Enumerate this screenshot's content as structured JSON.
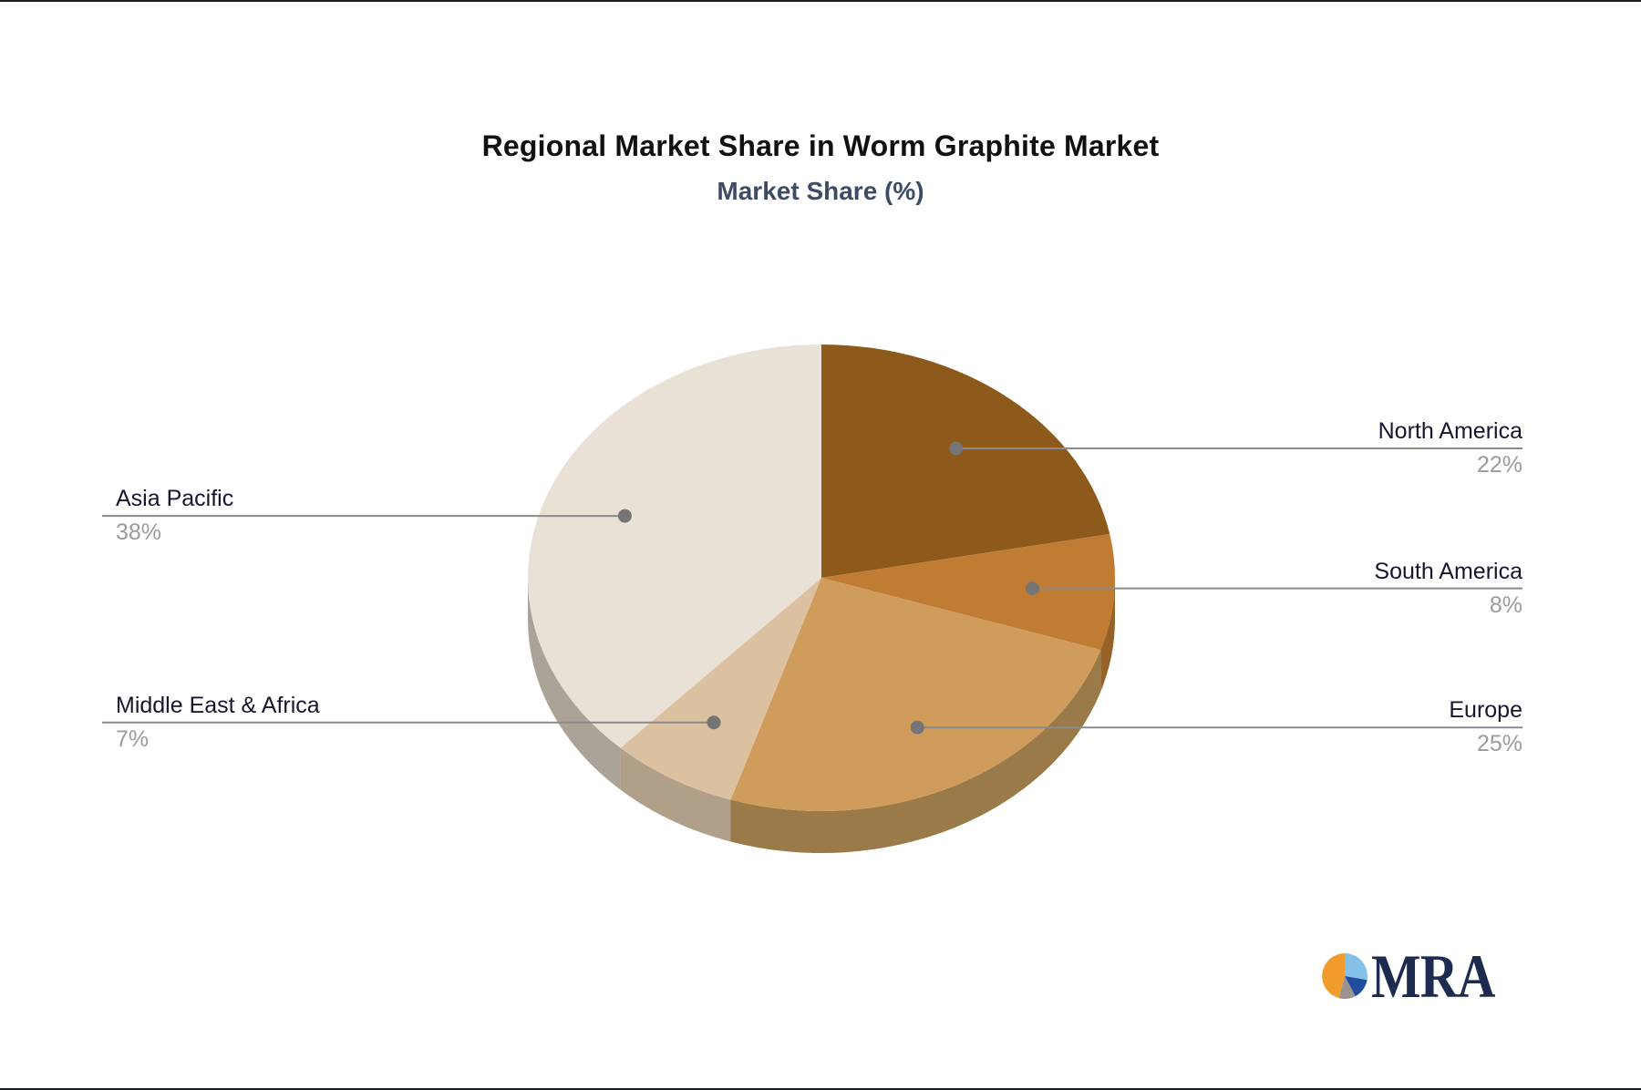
{
  "chart_data": {
    "type": "pie",
    "title": "Regional Market Share in Worm Graphite Market",
    "subtitle": "Market Share (%)",
    "unit": "%",
    "style": "3d",
    "start_angle": "top",
    "direction": "clockwise",
    "slices": [
      {
        "label": "North America",
        "value": 22,
        "pct": "22%",
        "side": "right",
        "color": "#8D5A1B",
        "side_color": "#6F4715"
      },
      {
        "label": "South America",
        "value": 8,
        "pct": "8%",
        "side": "right",
        "color": "#C07C33",
        "side_color": "#96622A"
      },
      {
        "label": "Europe",
        "value": 25,
        "pct": "25%",
        "side": "right",
        "color": "#D09C5C",
        "side_color": "#9A7A48"
      },
      {
        "label": "Middle East & Africa",
        "value": 7,
        "pct": "7%",
        "side": "left",
        "color": "#DCC1A0",
        "side_color": "#B0A089"
      },
      {
        "label": "Asia Pacific",
        "value": 38,
        "pct": "38%",
        "side": "left",
        "color": "#EAE1D6",
        "side_color": "#ACA398"
      }
    ],
    "callout_style": {
      "line_color": "#8A8A8A",
      "dot_color": "#757575",
      "label_color": "#15172E",
      "value_color": "#9B9B9B"
    }
  },
  "logo": {
    "text": "MRA",
    "text_color": "#1C2B4E",
    "mark_colors": {
      "orange": "#F39C2E",
      "light_blue": "#85C0E9",
      "navy": "#1F4E9C",
      "gray": "#9B938D"
    }
  }
}
